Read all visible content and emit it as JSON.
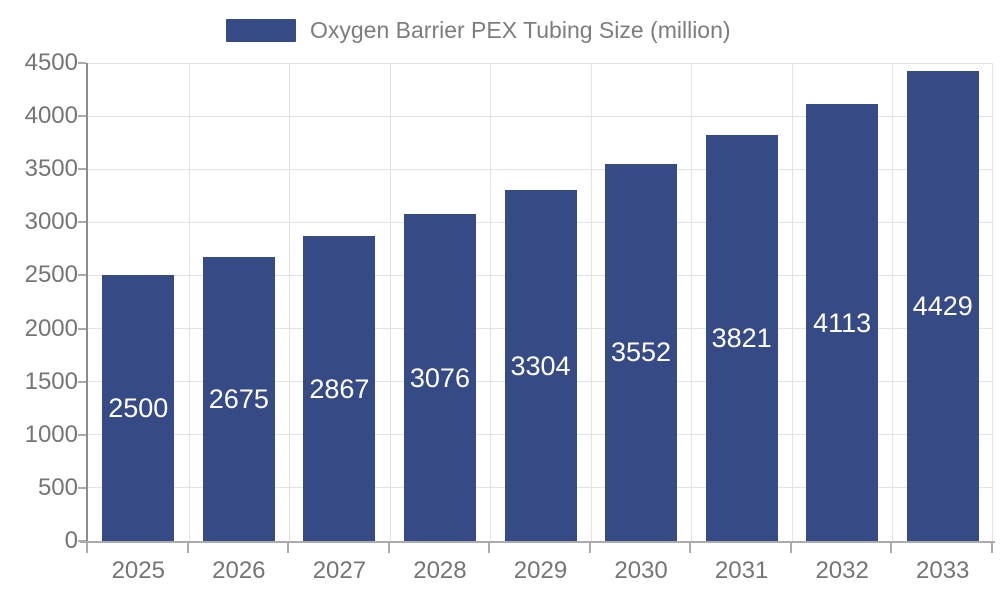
{
  "legend": {
    "label": "Oxygen Barrier PEX Tubing Size (million)",
    "swatch_color": "#364a85"
  },
  "chart_data": {
    "type": "bar",
    "title": "Oxygen Barrier PEX Tubing Size (million)",
    "categories": [
      "2025",
      "2026",
      "2027",
      "2028",
      "2029",
      "2030",
      "2031",
      "2032",
      "2033"
    ],
    "values": [
      2500,
      2675,
      2867,
      3076,
      3304,
      3552,
      3821,
      4113,
      4429
    ],
    "xlabel": "",
    "ylabel": "",
    "ylim": [
      0,
      4500
    ],
    "yticks": [
      0,
      500,
      1000,
      1500,
      2000,
      2500,
      3000,
      3500,
      4000,
      4500
    ],
    "grid": true,
    "legend_position": "top",
    "bar_color": "#364a85",
    "value_label_color": "#ffffff",
    "axis_text_color": "#757575",
    "gridline_color": "#e3e3e3"
  }
}
